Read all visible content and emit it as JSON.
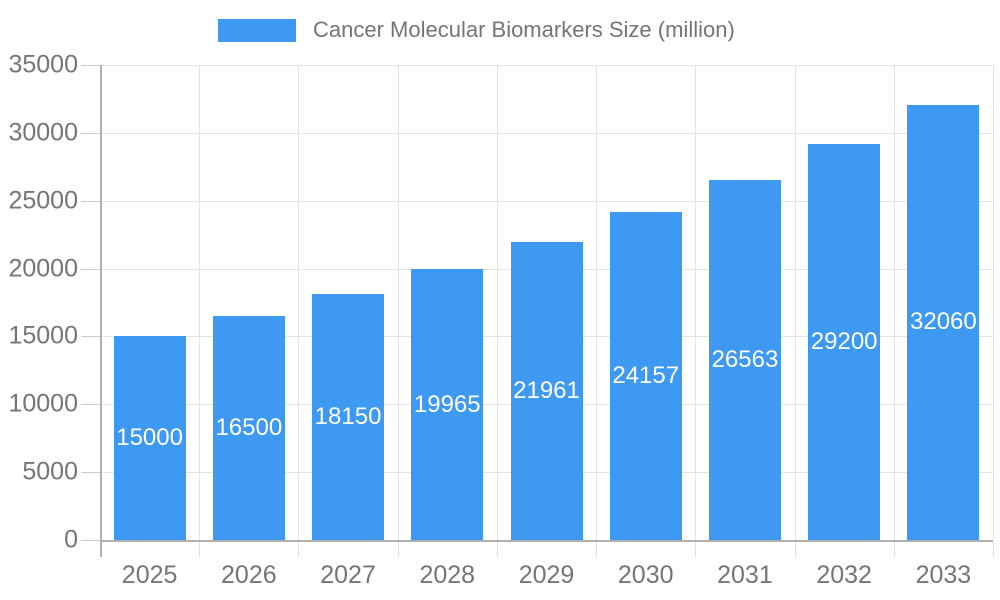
{
  "chart_data": {
    "type": "bar",
    "title": "Cancer Molecular Biomarkers Size (million)",
    "legend_position": "top",
    "categories": [
      "2025",
      "2026",
      "2027",
      "2028",
      "2029",
      "2030",
      "2031",
      "2032",
      "2033"
    ],
    "series": [
      {
        "name": "Cancer Molecular Biomarkers Size (million)",
        "values": [
          15000,
          16500,
          18150,
          19965,
          21961,
          24157,
          26563,
          29200,
          32060
        ]
      }
    ],
    "values": [
      15000,
      16500,
      18150,
      19965,
      21961,
      24157,
      26563,
      29200,
      32060
    ],
    "value_labels_position": "inside-center",
    "xlabel": "",
    "ylabel": "",
    "ylim": [
      0,
      35000
    ],
    "yticks": [
      0,
      5000,
      10000,
      15000,
      20000,
      25000,
      30000,
      35000
    ],
    "ytick_labels": [
      "0",
      "5000",
      "10000",
      "15000",
      "20000",
      "25000",
      "30000",
      "35000"
    ],
    "grid": true
  },
  "colors": {
    "bar": "#3d99f2",
    "axis_text": "#757575",
    "value_label_text": "#ffffff",
    "gridline": "#e4e4e4",
    "axis_line": "#b0b0b0",
    "y_tick_dash": "#c8c8c8",
    "x_tick_dash": "#e0e0e0",
    "background": "#ffffff"
  }
}
